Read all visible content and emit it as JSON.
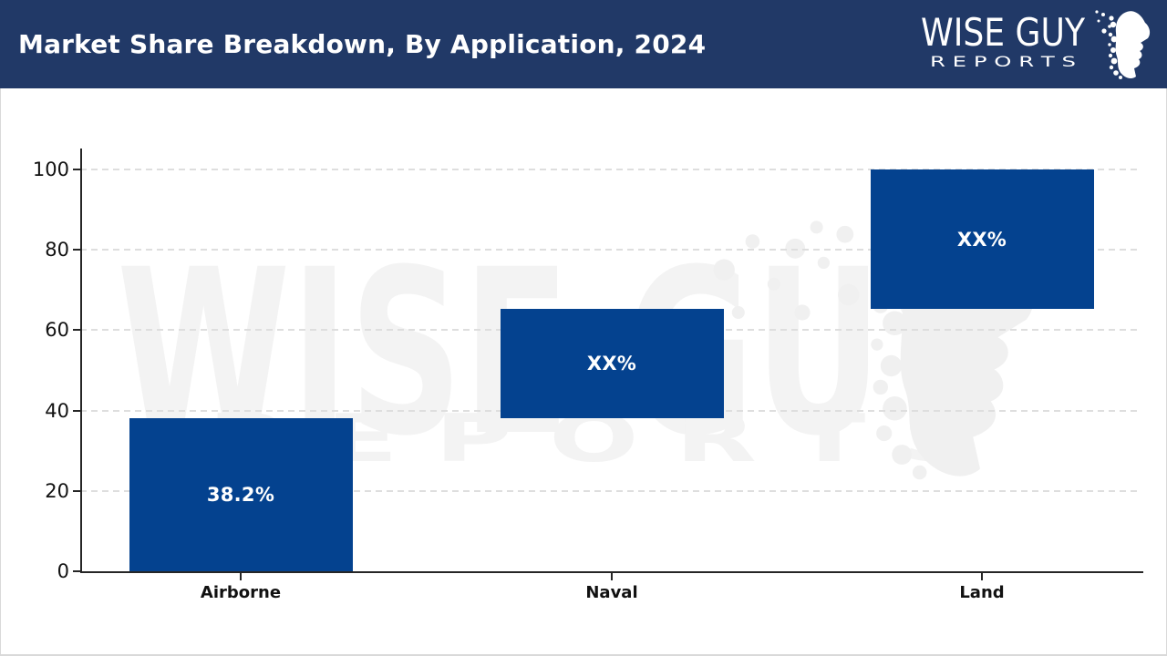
{
  "header": {
    "title": "Market Share Breakdown, By Application, 2024",
    "background_color": "#213967",
    "logo": {
      "line1": "WISE GUY",
      "line2": "R E P O R T S"
    }
  },
  "watermark": {
    "line1": "WISE GUY",
    "line2": "R E P O R T S"
  },
  "chart_data": {
    "type": "bar",
    "subtype": "waterfall",
    "title": "Market Share Breakdown, By Application, 2024",
    "categories": [
      "Airborne",
      "Naval",
      "Land"
    ],
    "segments": [
      {
        "category": "Airborne",
        "start": 0,
        "end": 38.2,
        "label": "38.2%"
      },
      {
        "category": "Naval",
        "start": 38.2,
        "end": 65.3,
        "label": "XX%"
      },
      {
        "category": "Land",
        "start": 65.3,
        "end": 100,
        "label": "XX%"
      }
    ],
    "xlabel": "",
    "ylabel": "",
    "ylim": [
      0,
      100
    ],
    "yticks": [
      0,
      20,
      40,
      60,
      80,
      100
    ],
    "grid": "horizontal-dashed",
    "legend": "none",
    "bar_color": "#04428f",
    "bar_label_color": "#ffffff",
    "axis_color": "#262626"
  }
}
